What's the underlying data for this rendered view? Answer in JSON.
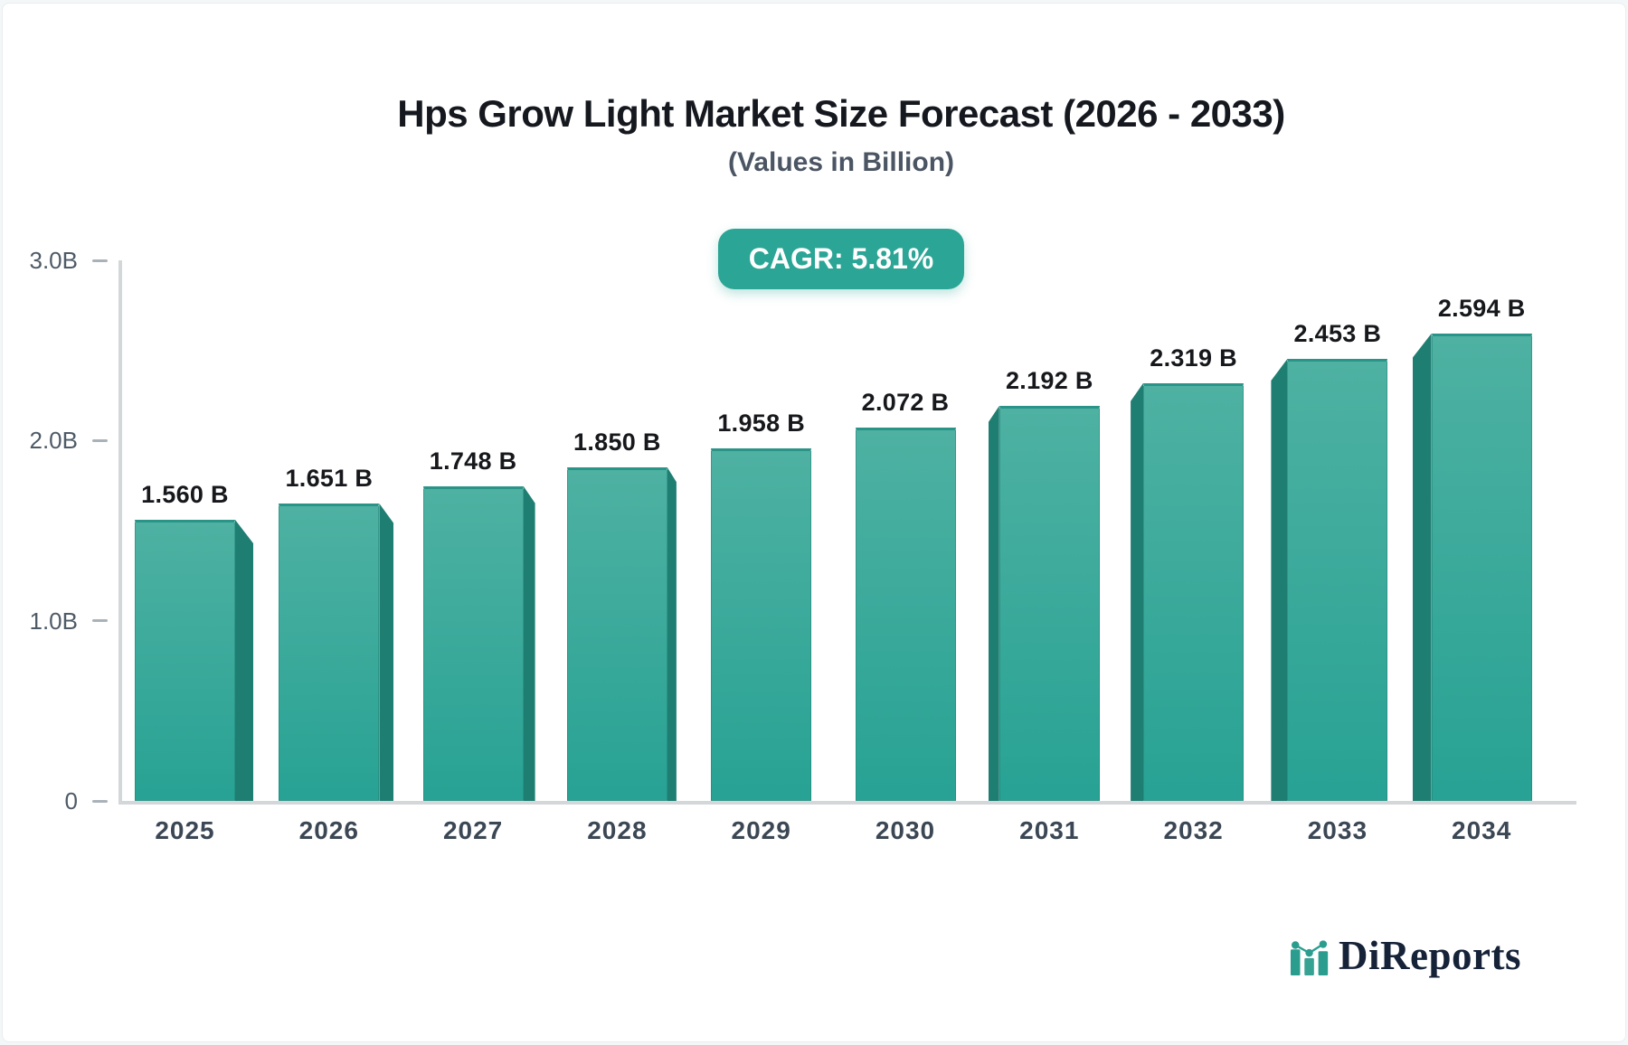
{
  "page": {
    "background": "#f4f7f8",
    "card_background": "#ffffff",
    "card_border": "#e9edef"
  },
  "header": {
    "title": "Hps Grow Light Market Size Forecast (2026 - 2033)",
    "subtitle": "(Values in Billion)",
    "title_color": "#15181e",
    "subtitle_color": "#4b5563"
  },
  "badge": {
    "label": "CAGR: 5.81%",
    "background": "#2ba595",
    "text_color": "#ffffff"
  },
  "chart_data": {
    "type": "bar",
    "title": "Hps Grow Light Market Size Forecast (2026 - 2033)",
    "subtitle": "(Values in Billion)",
    "unit": "Billion",
    "categories": [
      "2025",
      "2026",
      "2027",
      "2028",
      "2029",
      "2030",
      "2031",
      "2032",
      "2033",
      "2034"
    ],
    "values": [
      1.56,
      1.651,
      1.748,
      1.85,
      1.958,
      2.072,
      2.192,
      2.319,
      2.453,
      2.594
    ],
    "value_labels": [
      "1.560 B",
      "1.651 B",
      "1.748 B",
      "1.850 B",
      "1.958 B",
      "2.072 B",
      "2.192 B",
      "2.319 B",
      "2.453 B",
      "2.594 B"
    ],
    "xlabel": "",
    "ylabel": "",
    "ylim": [
      0,
      3.0
    ],
    "yticks": [
      {
        "v": 0,
        "label": "0"
      },
      {
        "v": 1,
        "label": "1.0B"
      },
      {
        "v": 2,
        "label": "2.0B"
      },
      {
        "v": 3,
        "label": "3.0B"
      }
    ],
    "grid": false,
    "legend": false,
    "bar_style": {
      "face_top": "#4eb1a2",
      "face_bottom": "#27a294",
      "top_edge": "#2b9488",
      "side_3d": "#1f7e72",
      "effect": "3d blocks, side faces vanish toward chart center"
    },
    "axis_color": "#d3d7da",
    "tick_label_color": "#4e5a66",
    "category_label_color": "#3b4754",
    "value_label_color": "#16181c"
  },
  "footer": {
    "brand": "DiReports",
    "brand_color": "#152238",
    "icon": "mini-bar-chart-icon",
    "icon_color": "#2a9d8f"
  }
}
